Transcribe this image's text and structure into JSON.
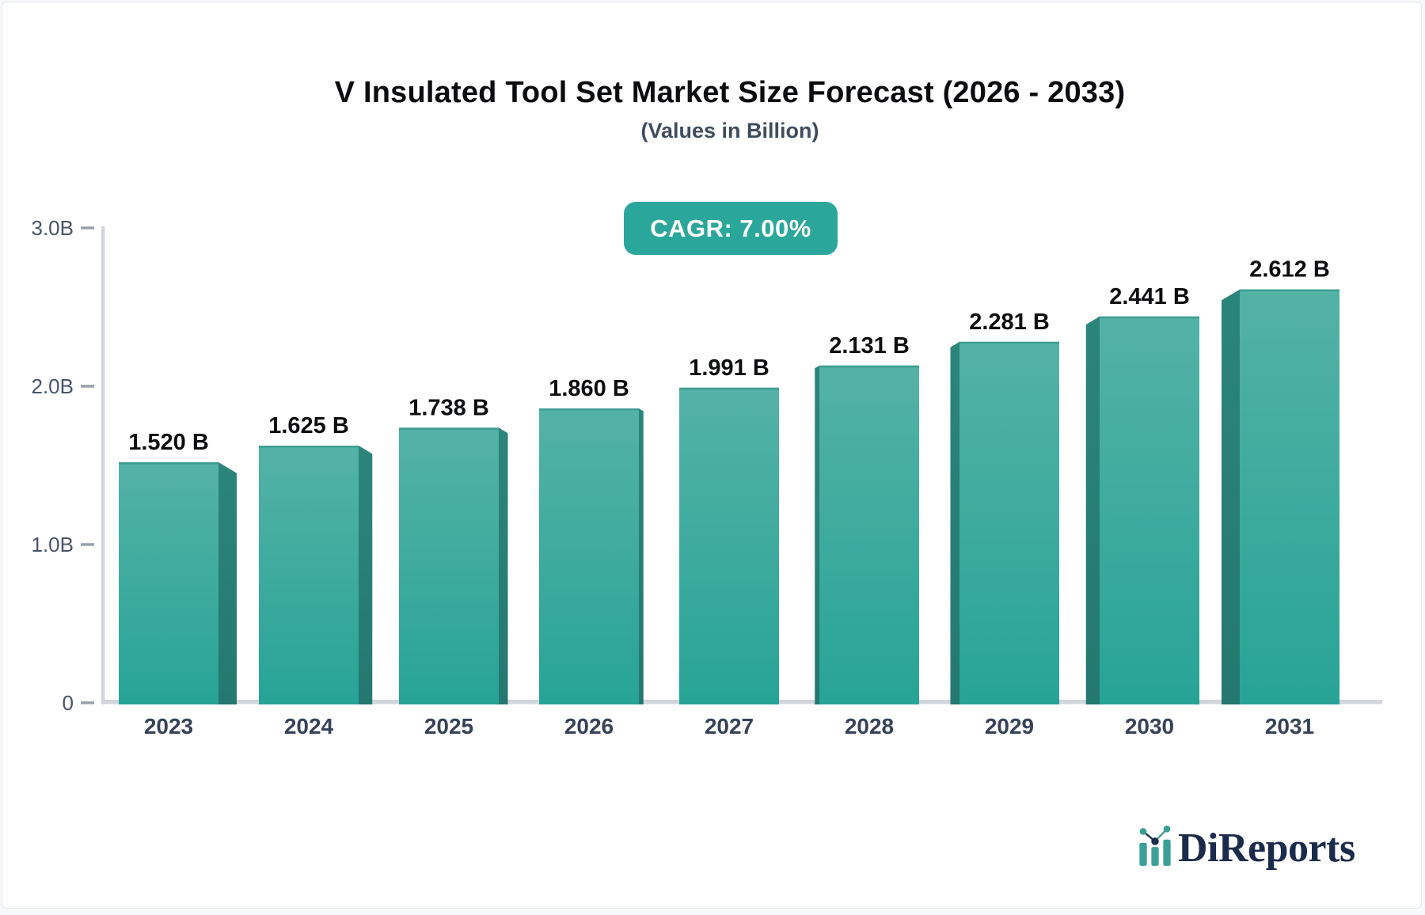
{
  "page": {
    "background": "#f6f8fa",
    "card_background": "#ffffff",
    "card_border": "#e8ebf0"
  },
  "header": {
    "title": "V Insulated Tool Set Market Size Forecast (2026 - 2033)",
    "subtitle": "(Values in Billion)",
    "cagr_label": "CAGR: 7.00%",
    "badge_color": "#2aa79a"
  },
  "chart_data": {
    "type": "bar",
    "title": "V Insulated Tool Set Market Size Forecast (2026 - 2033)",
    "subtitle": "(Values in Billion)",
    "xlabel": "",
    "ylabel": "",
    "categories": [
      "2023",
      "2024",
      "2025",
      "2026",
      "2027",
      "2028",
      "2029",
      "2030",
      "2031"
    ],
    "values": [
      1.52,
      1.625,
      1.738,
      1.86,
      1.991,
      2.131,
      2.281,
      2.441,
      2.612
    ],
    "value_labels": [
      "1.520 B",
      "1.625 B",
      "1.738 B",
      "1.860 B",
      "1.991 B",
      "2.131 B",
      "2.281 B",
      "2.441 B",
      "2.612 B"
    ],
    "ylim": [
      0,
      3.0
    ],
    "yticks": [
      {
        "value": 0.0,
        "label": "0"
      },
      {
        "value": 1.0,
        "label": "1.0B"
      },
      {
        "value": 2.0,
        "label": "2.0B"
      },
      {
        "value": 3.0,
        "label": "3.0B"
      }
    ],
    "grid": false,
    "legend": false,
    "style_3d": true,
    "colors": {
      "bar_front_top": "#54b2a6",
      "bar_front_bottom": "#27a496",
      "bar_top_edge": "#3d9e92",
      "bar_side": "#24786f",
      "axis_line": "#d2d5dd",
      "tick_dash": "#9aa1ac",
      "tick_label": "#47536a",
      "category_label": "#36425a",
      "value_label": "#0d0e10"
    }
  },
  "logo": {
    "text": "DiReports",
    "text_color": "#1b2b4b",
    "icon": "bar-chart-trendline-icon",
    "icon_teal": "#3a9f97",
    "icon_navy": "#1b2b4b"
  }
}
